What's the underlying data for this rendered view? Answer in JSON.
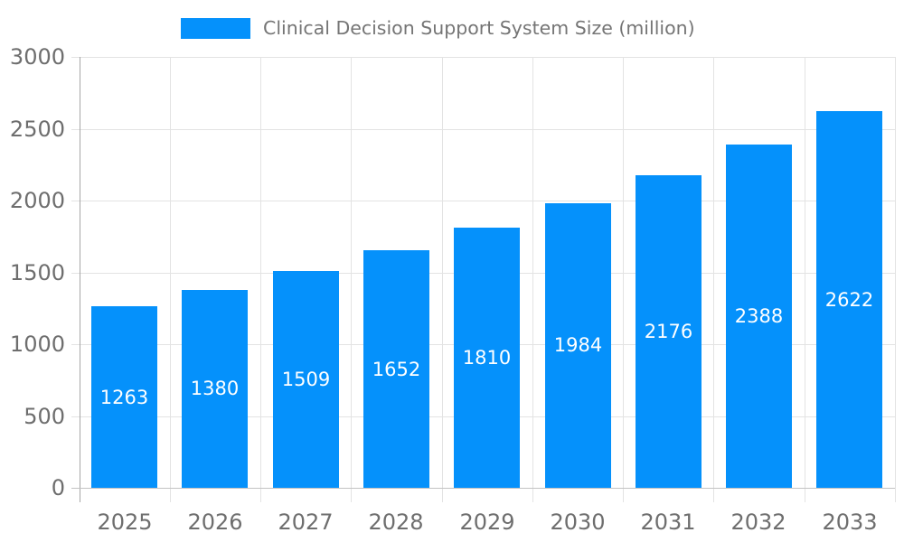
{
  "legend": {
    "label": "Clinical Decision Support System Size (million)"
  },
  "colors": {
    "bar": "#0591fb",
    "legend_text": "#757575",
    "tick_text": "#6e6e6e",
    "grid": "#e3e3e3",
    "y_axis": "#a6a6a6",
    "x_axis": "#c3c3c3",
    "value_label": "#ffffff",
    "background": "#ffffff"
  },
  "chart_data": {
    "type": "bar",
    "title": "Clinical Decision Support System Size (million)",
    "categories": [
      "2025",
      "2026",
      "2027",
      "2028",
      "2029",
      "2030",
      "2031",
      "2032",
      "2033"
    ],
    "values": [
      1263,
      1380,
      1509,
      1652,
      1810,
      1984,
      2176,
      2388,
      2622
    ],
    "xlabel": "",
    "ylabel": "",
    "ylim": [
      0,
      3000
    ],
    "yticks": [
      0,
      500,
      1000,
      1500,
      2000,
      2500,
      3000
    ],
    "grid": true,
    "legend_position": "top",
    "value_label_position": "inside-center"
  }
}
